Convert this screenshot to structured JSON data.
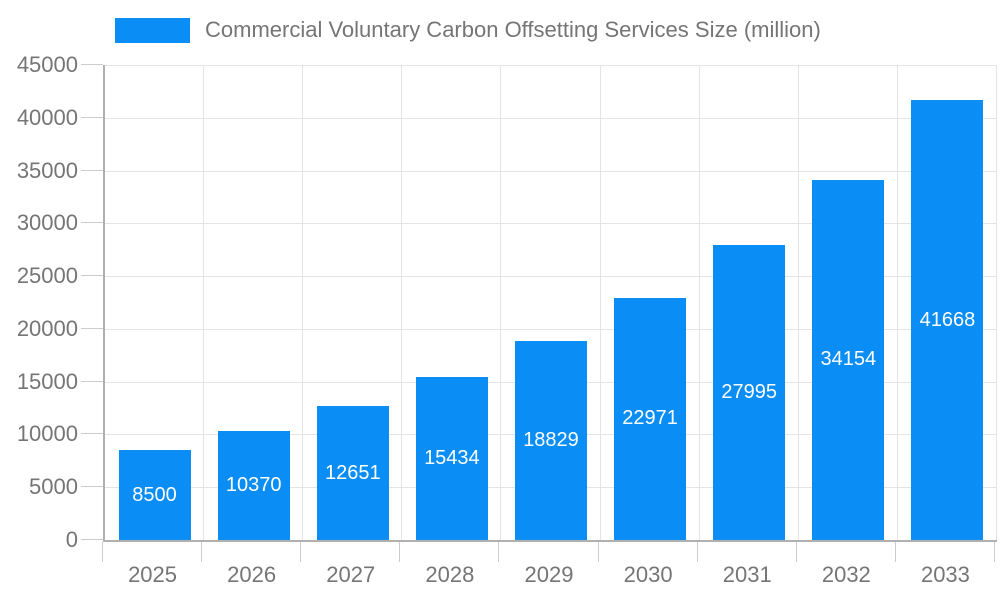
{
  "legend": {
    "label": "Commercial Voluntary Carbon Offsetting Services Size (million)"
  },
  "colors": {
    "bar": "#0a8df5",
    "gridline": "#e4e4e4",
    "axis_line": "#b0b0b0",
    "tick": "#cccccc",
    "axis_text": "#757575",
    "value_label": "#ffffff",
    "background": "#ffffff"
  },
  "chart_data": {
    "type": "bar",
    "title": "Commercial Voluntary Carbon Offsetting Services Size (million)",
    "categories": [
      "2025",
      "2026",
      "2027",
      "2028",
      "2029",
      "2030",
      "2031",
      "2032",
      "2033"
    ],
    "values": [
      8500,
      10370,
      12651,
      15434,
      18829,
      22971,
      27995,
      34154,
      41668
    ],
    "xlabel": "",
    "ylabel": "",
    "ylim": [
      0,
      45000
    ],
    "y_ticks": [
      0,
      5000,
      10000,
      15000,
      20000,
      25000,
      30000,
      35000,
      40000,
      45000
    ],
    "grid": true,
    "legend_position": "top-left",
    "value_labels": "inside-center"
  }
}
